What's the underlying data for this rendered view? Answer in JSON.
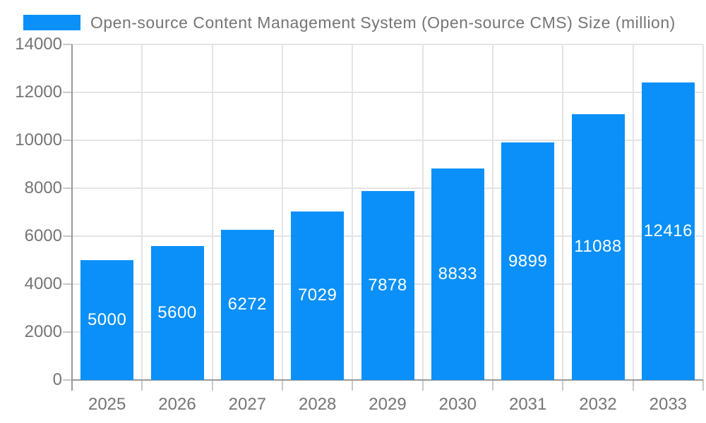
{
  "chart_data": {
    "type": "bar",
    "title": "Open-source Content Management System (Open-source CMS) Size (million)",
    "legend": {
      "label": "Open-source Content Management System (Open-source CMS) Size (million)",
      "position": "top-left"
    },
    "categories": [
      "2025",
      "2026",
      "2027",
      "2028",
      "2029",
      "2030",
      "2031",
      "2032",
      "2033"
    ],
    "series": [
      {
        "name": "Open-source Content Management System (Open-source CMS) Size (million)",
        "values": [
          5000,
          5600,
          6272,
          7029,
          7878,
          8833,
          9899,
          11088,
          12416
        ]
      }
    ],
    "bar_value_labels": [
      "5000",
      "5600",
      "6272",
      "7029",
      "7878",
      "8833",
      "9899",
      "11088",
      "12416"
    ],
    "xlabel": "",
    "ylabel": "",
    "ylim": [
      0,
      14000
    ],
    "ytick_interval": 2000,
    "yticks": [
      0,
      2000,
      4000,
      6000,
      8000,
      10000,
      12000,
      14000
    ],
    "grid": true,
    "legend_position": "top-left",
    "colors": {
      "bar": "#0a90f8",
      "bar_label_text": "#ffffff",
      "axis_text": "#757575",
      "gridline": "#e4e4e4",
      "axis_line": "#999999",
      "tick_line": "#c8c8c8",
      "background": "#ffffff"
    }
  }
}
